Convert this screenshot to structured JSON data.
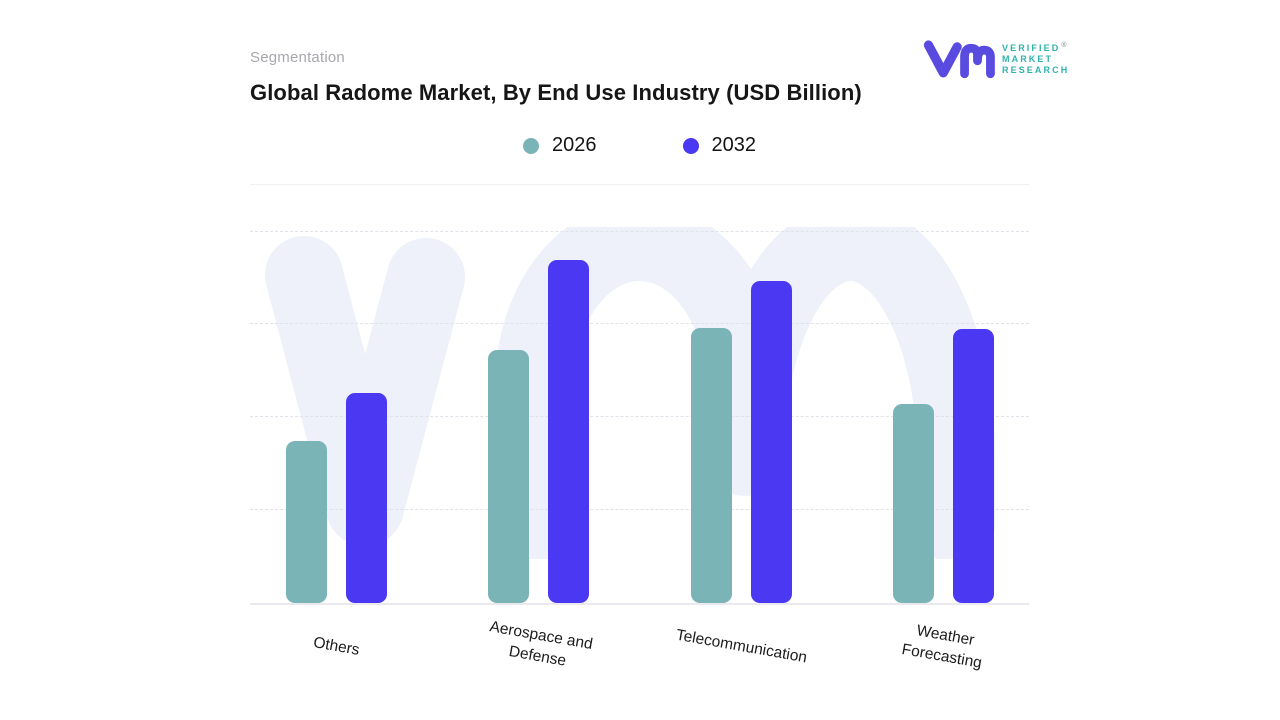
{
  "header": {
    "eyebrow": "Segmentation",
    "title": "Global Radome Market, By End Use Industry (USD Billion)"
  },
  "logo": {
    "monogram": "vm",
    "monogram_color": "#5a4be0",
    "line1": "VERIFIED",
    "registered_mark": "®",
    "line2": "MARKET",
    "line3": "RESEARCH",
    "text_color": "#2fb3ab"
  },
  "watermark": {
    "glyph": "vm",
    "color": "#eef0fa"
  },
  "chart_data": {
    "type": "bar",
    "title": "Global Radome Market, By End Use Industry (USD Billion)",
    "unit": "USD Billion",
    "categories": [
      "Others",
      "Aerospace and Defense",
      "Telecommunication",
      "Weather Forecasting"
    ],
    "category_label_lines": [
      [
        "Others"
      ],
      [
        "Aerospace and",
        "Defense"
      ],
      [
        "Telecommunication"
      ],
      [
        "Weather",
        "Forecasting"
      ]
    ],
    "series": [
      {
        "name": "2026",
        "color": "#7ab4b6",
        "values": [
          1.74,
          2.72,
          2.96,
          2.14
        ]
      },
      {
        "name": "2032",
        "color": "#4a38f2",
        "values": [
          2.26,
          3.69,
          3.47,
          2.95
        ]
      }
    ],
    "ylim": [
      0,
      4.05
    ],
    "gridline_step": 1,
    "y_axis_tick_labels_visible": false,
    "gridlines": "horizontal-dashed",
    "legend_position": "top-center",
    "x_label_rotation_deg": 10
  }
}
